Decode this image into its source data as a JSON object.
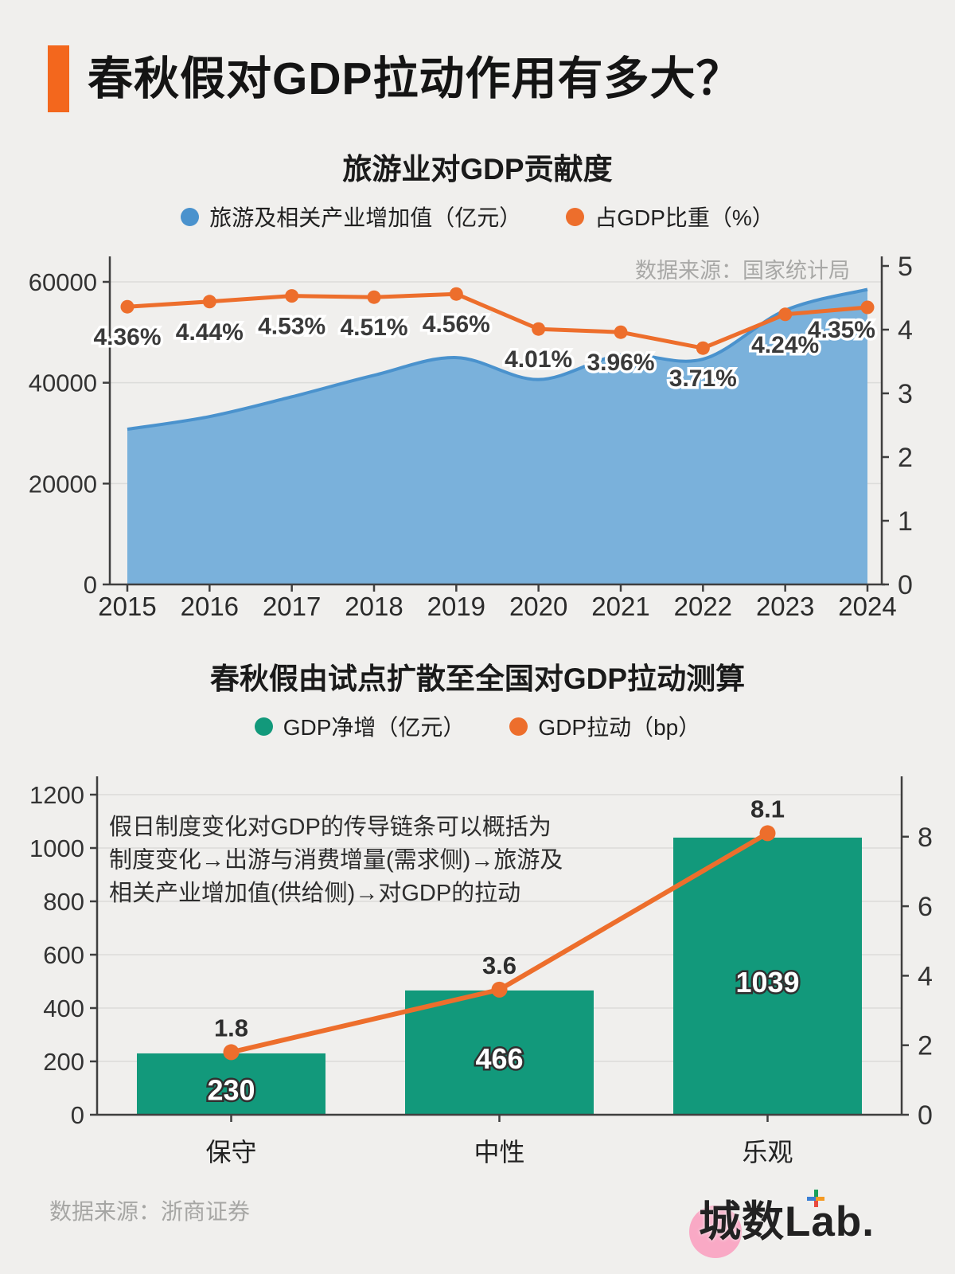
{
  "page": {
    "background": "#f0efed",
    "accent_color": "#f3671d",
    "title": "春秋假对GDP拉动作用有多大？"
  },
  "footer": {
    "source": "数据来源：浙商证券",
    "logo_cn": "城数",
    "logo_en": "Lab.",
    "logo_pink": "#f9a9c5"
  },
  "chart_data": [
    {
      "type": "area",
      "title": "旅游业对GDP贡献度",
      "source_note": "数据来源：国家统计局",
      "categories": [
        "2015",
        "2016",
        "2017",
        "2018",
        "2019",
        "2020",
        "2021",
        "2022",
        "2023",
        "2024"
      ],
      "series": [
        {
          "name": "旅游及相关产业增加值（亿元）",
          "kind": "area",
          "axis": "left",
          "color": "#4a92cd",
          "fill": "#7ab1db",
          "values": [
            30780,
            33290,
            37210,
            41480,
            44990,
            40630,
            45480,
            44670,
            54360,
            58500
          ]
        },
        {
          "name": "占GDP比重（%）",
          "kind": "line",
          "axis": "right",
          "color": "#ed6e2c",
          "values": [
            4.36,
            4.44,
            4.53,
            4.51,
            4.56,
            4.01,
            3.96,
            3.71,
            4.24,
            4.35
          ],
          "labels": [
            "4.36%",
            "4.44%",
            "4.53%",
            "4.51%",
            "4.56%",
            "4.01%",
            "3.96%",
            "3.71%",
            "4.24%",
            "4.35%"
          ]
        }
      ],
      "left_axis": {
        "min": 0,
        "max": 60000,
        "ticks": [
          0,
          20000,
          40000,
          60000
        ]
      },
      "right_axis": {
        "min": 0,
        "max": 5,
        "ticks": [
          0,
          1,
          2,
          3,
          4,
          5
        ]
      },
      "grid": true,
      "legend_position": "top"
    },
    {
      "type": "bar",
      "title": "春秋假由试点扩散至全国对GDP拉动测算",
      "categories": [
        "保守",
        "中性",
        "乐观"
      ],
      "series": [
        {
          "name": "GDP净增（亿元）",
          "kind": "bar",
          "axis": "left",
          "color": "#12997b",
          "values": [
            230,
            466,
            1039
          ]
        },
        {
          "name": "GDP拉动（bp）",
          "kind": "line",
          "axis": "right",
          "color": "#ed6e2c",
          "values": [
            1.8,
            3.6,
            8.1
          ]
        }
      ],
      "left_axis": {
        "min": 0,
        "max": 1200,
        "ticks": [
          0,
          200,
          400,
          600,
          800,
          1000,
          1200
        ]
      },
      "right_axis": {
        "min": 0,
        "max": 8,
        "ticks": [
          0,
          2,
          4,
          6,
          8
        ]
      },
      "annotation": [
        "假日制度变化对GDP的传导链条可以概括为",
        "制度变化→出游与消费增量(需求侧)→旅游及",
        "相关产业增加值(供给侧)→对GDP的拉动"
      ],
      "grid": true,
      "legend_position": "top"
    }
  ]
}
